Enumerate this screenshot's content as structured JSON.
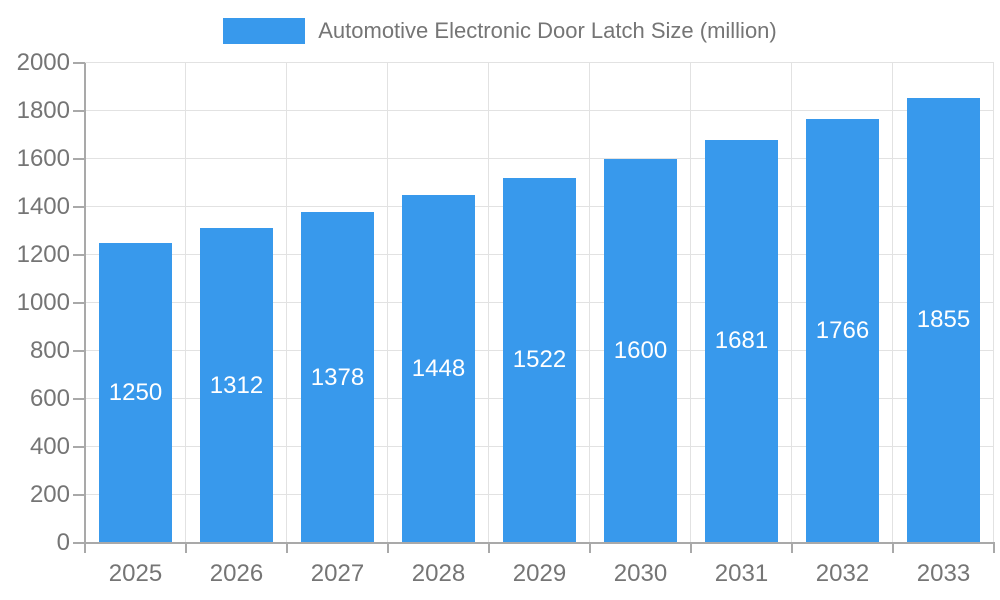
{
  "chart_data": {
    "type": "bar",
    "title": "",
    "legend": "Automotive Electronic Door Latch Size (million)",
    "categories": [
      "2025",
      "2026",
      "2027",
      "2028",
      "2029",
      "2030",
      "2031",
      "2032",
      "2033"
    ],
    "values": [
      1250,
      1312,
      1378,
      1448,
      1522,
      1600,
      1681,
      1766,
      1855
    ],
    "xlabel": "",
    "ylabel": "",
    "ylim": [
      0,
      2000
    ],
    "ytick_step": 200,
    "ytick_labels": [
      "0",
      "200",
      "400",
      "600",
      "800",
      "1000",
      "1200",
      "1400",
      "1600",
      "1800",
      "2000"
    ],
    "grid": true,
    "legend_position": "top",
    "value_labels": "inside-center",
    "colors": {
      "bar": "#3899EC",
      "bar_label": "#FFFFFF",
      "axis_text": "#757575",
      "grid_line": "#E2E2E2",
      "axis_line": "#A9A9A9",
      "background": "#FFFFFF"
    }
  }
}
